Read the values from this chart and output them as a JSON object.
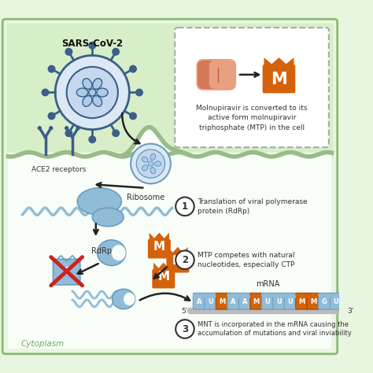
{
  "bg_outer": "#e8f5e0",
  "bg_green_top": "#d8eec8",
  "bg_white_cell": "#f8fdf8",
  "border_color": "#88bb77",
  "cell_membrane_color": "#99bb88",
  "orange_color": "#d4620a",
  "blue_light": "#90bcd8",
  "blue_mid": "#6a9ec0",
  "blue_dark": "#3a5f8a",
  "gray_color": "#aaaaaa",
  "text_dark": "#333333",
  "text_green": "#77aa66",
  "mRNA_sequence": [
    "A",
    "U",
    "M",
    "A",
    "A",
    "M",
    "U",
    "U",
    "U",
    "M",
    "M",
    "G",
    "U"
  ],
  "mRNA_colors": [
    "blue",
    "blue",
    "orange",
    "blue",
    "blue",
    "orange",
    "blue",
    "blue",
    "blue",
    "orange",
    "orange",
    "blue",
    "blue"
  ],
  "step1_text": "Translation of viral polymerase\nprotein (RdRp)",
  "step2_text": "MTP competes with natural\nnucleotides, especially CTP",
  "step3_text": "MNT is incorporated in the mRNA causing the\naccumulation of mutations and viral inviability",
  "box_text": "Molnupiravir is converted to its\nactive form molnupiravir\ntriphosphate (MTP) in the cell",
  "cytoplasm_text": "Cytoplasm",
  "sars_text": "SARS-CoV-2",
  "ace2_text": "ACE2 receptors",
  "ribosome_text": "Ribosome",
  "rdrp_text": "RdRp",
  "mrna_label": "mRNA"
}
